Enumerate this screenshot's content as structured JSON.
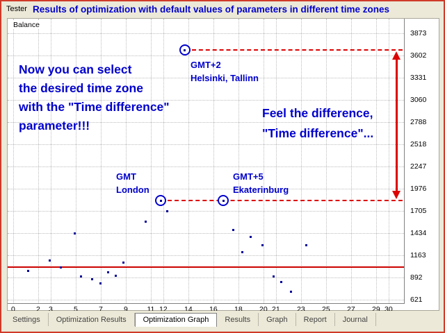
{
  "window": {
    "caption_left": "Tester",
    "title": "Results of optimization with default values of parameters in different time zones"
  },
  "colors": {
    "title_blue": "#0000cc",
    "annotation_blue": "#0000cc",
    "point_blue": "#000099",
    "line_red": "#dd0000",
    "window_border_red": "#cf3a28",
    "chrome_gray": "#ece9d8"
  },
  "chart_data": {
    "type": "scatter",
    "legend": "Balance",
    "x_ticks": [
      0,
      2,
      3,
      5,
      7,
      9,
      11,
      12,
      14,
      16,
      18,
      20,
      21,
      23,
      25,
      27,
      29,
      30
    ],
    "y_ticks": [
      3873,
      3602,
      3331,
      3060,
      2788,
      2518,
      2247,
      1976,
      1705,
      1434,
      1163,
      892,
      621
    ],
    "x_range": [
      -0.44,
      31.23
    ],
    "y_range": [
      579,
      4051
    ],
    "points": [
      [
        1.2,
        970
      ],
      [
        2.9,
        1100
      ],
      [
        3.8,
        1015
      ],
      [
        4.9,
        1430
      ],
      [
        5.4,
        905
      ],
      [
        6.3,
        870
      ],
      [
        7.0,
        820
      ],
      [
        7.6,
        955
      ],
      [
        8.2,
        915
      ],
      [
        8.8,
        1075
      ],
      [
        10.6,
        1575
      ],
      [
        12.3,
        1700
      ],
      [
        17.6,
        1475
      ],
      [
        18.3,
        1200
      ],
      [
        19.0,
        1385
      ],
      [
        19.9,
        1290
      ],
      [
        20.8,
        905
      ],
      [
        21.4,
        840
      ],
      [
        22.2,
        715
      ],
      [
        23.4,
        1290
      ]
    ],
    "highlighted_points": [
      {
        "x": 13.7,
        "y": 3670,
        "label": "GMT+2"
      },
      {
        "x": 11.8,
        "y": 1830,
        "label": "GMT"
      },
      {
        "x": 16.8,
        "y": 1830,
        "label": "GMT+5"
      }
    ],
    "baseline_value": 1020,
    "dashed_lines": [
      {
        "value": 3670,
        "from_x": 14.3
      },
      {
        "value": 1830,
        "from_x": 12.35
      }
    ],
    "range_arrow": {
      "from": 1830,
      "to": 3670
    }
  },
  "annotations": {
    "promo": [
      "Now you can select",
      "the desired time zone",
      "with the \"Time difference\"",
      "parameter!!!"
    ],
    "gmt2": [
      "GMT+2",
      "Helsinki, Tallinn"
    ],
    "feel": [
      "Feel the difference,",
      "\"Time difference\"..."
    ],
    "gmt0": [
      "GMT",
      "London"
    ],
    "gmt5": [
      "GMT+5",
      "Ekaterinburg"
    ]
  },
  "tabs": [
    {
      "label": "Settings",
      "active": false
    },
    {
      "label": "Optimization Results",
      "active": false
    },
    {
      "label": "Optimization Graph",
      "active": true
    },
    {
      "label": "Results",
      "active": false
    },
    {
      "label": "Graph",
      "active": false
    },
    {
      "label": "Report",
      "active": false
    },
    {
      "label": "Journal",
      "active": false
    }
  ]
}
